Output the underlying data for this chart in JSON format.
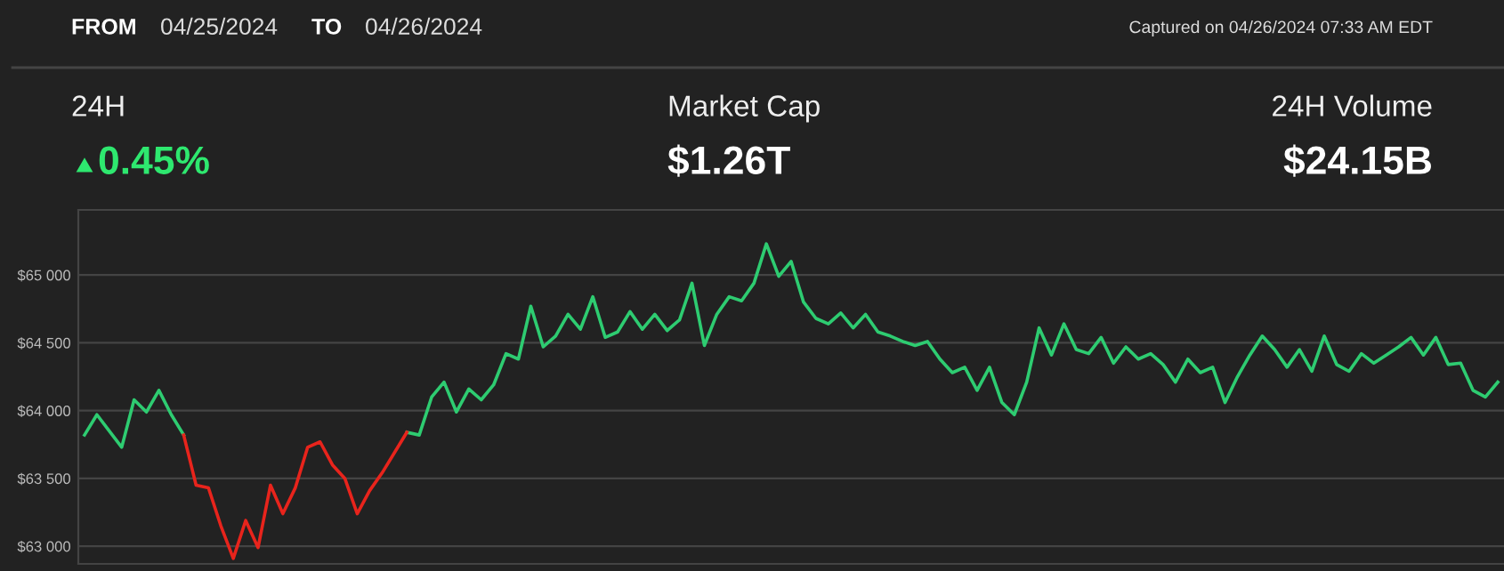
{
  "chart_data": {
    "type": "line",
    "annotations": [
      "FROM",
      "04/25/2024",
      "TO",
      "04/26/2024",
      "Captured on 04/26/2024 07:33 AM EDT",
      "24H",
      "0.45%",
      "Market Cap",
      "$1.26T",
      "24H Volume",
      "$24.15B"
    ],
    "categories": [
      null,
      null,
      null,
      null,
      null,
      null,
      null,
      null,
      null,
      null,
      null,
      null,
      null,
      null,
      null,
      null,
      null,
      null,
      null,
      null,
      null,
      null,
      null,
      null,
      null,
      null,
      null,
      null,
      null,
      null,
      null,
      null,
      null,
      null,
      null,
      null,
      null,
      null,
      null,
      null,
      null,
      null,
      null,
      null,
      null,
      null,
      null,
      null,
      null,
      null,
      null,
      null,
      null,
      null,
      null,
      null,
      null,
      null,
      null,
      null,
      null,
      null,
      null,
      null,
      null,
      null,
      null,
      null,
      null,
      null,
      null,
      null,
      null,
      null,
      null,
      null,
      null,
      null,
      null,
      null,
      null,
      null,
      null,
      null,
      null,
      null,
      null,
      null,
      null,
      null,
      null,
      null,
      null,
      null,
      null,
      null,
      null,
      null,
      null,
      null,
      null,
      null,
      null,
      null,
      null,
      null,
      null,
      null,
      null,
      null,
      null,
      null,
      null,
      null,
      null
    ],
    "series": [
      {
        "color": "#2ecc71",
        "values": [
          63820,
          63970,
          63850,
          63730,
          64080,
          63990,
          64150,
          63970,
          63820,
          null,
          null,
          null,
          null,
          null,
          null,
          null,
          null,
          null,
          null,
          null,
          null,
          null,
          null,
          null,
          null,
          null,
          null,
          null,
          null,
          null,
          null,
          null,
          null,
          null,
          null,
          null,
          null,
          null,
          null,
          null,
          null,
          null,
          null,
          null,
          null,
          null,
          null,
          null,
          null,
          null,
          null,
          null,
          null,
          null,
          null,
          null,
          null,
          null,
          null,
          null,
          null,
          null,
          null,
          null,
          null,
          null,
          null,
          null,
          null,
          null,
          null,
          null,
          null,
          null,
          null,
          null,
          null,
          null,
          null,
          null,
          null,
          null,
          null,
          null,
          null,
          null,
          null,
          null,
          null,
          null,
          null,
          null,
          null,
          null,
          null,
          null,
          null,
          null,
          null,
          null,
          null,
          null,
          null,
          null,
          null,
          null,
          null,
          null,
          null,
          null,
          null,
          null,
          null,
          null,
          null
        ]
      },
      {
        "color": "#2ecc71",
        "values": [
          null,
          null,
          null,
          null,
          null,
          null,
          null,
          null,
          null,
          null,
          null,
          null,
          null,
          null,
          null,
          null,
          null,
          null,
          null,
          null,
          null,
          null,
          null,
          null,
          null,
          null,
          63840,
          63820,
          64100,
          64210,
          63990,
          64160,
          64080,
          64190,
          64420,
          64380,
          64770,
          64470,
          64550,
          64710,
          64600,
          64840,
          64540,
          64580,
          64730,
          64600,
          64710,
          64590,
          64670,
          64940,
          64480,
          64710,
          64840,
          64810,
          64940,
          65230,
          64990,
          65100,
          64800,
          64680,
          64640,
          64720,
          64610,
          64710,
          64580,
          64550,
          64510,
          64480,
          64510,
          64380,
          64280,
          64320,
          64150,
          64320,
          64060,
          63970,
          64210,
          64610,
          64410,
          64640,
          64450,
          64420,
          64540,
          64350,
          64470,
          64380,
          64420,
          64340,
          64210,
          64380,
          64280,
          64320,
          64060,
          64250,
          64410,
          64550,
          64450,
          64320,
          64450,
          64290,
          64550,
          64340,
          64290,
          64420,
          64350,
          64410,
          64470,
          64540,
          64410,
          64540,
          64340,
          64350,
          64150,
          64100,
          64210
        ]
      },
      {
        "color": "#e8241c",
        "values": [
          null,
          null,
          null,
          null,
          null,
          null,
          null,
          null,
          63820,
          63450,
          63430,
          63150,
          62910,
          63190,
          62990,
          63450,
          63240,
          63430,
          63730,
          63770,
          63600,
          63500,
          63240,
          63410,
          63540,
          63690,
          63840,
          null,
          null,
          null,
          null,
          null,
          null,
          null,
          null,
          null,
          null,
          null,
          null,
          null,
          null,
          null,
          null,
          null,
          null,
          null,
          null,
          null,
          null,
          null,
          null,
          null,
          null,
          null,
          null,
          null,
          null,
          null,
          null,
          null,
          null,
          null,
          null,
          null,
          null,
          null,
          null,
          null,
          null,
          null,
          null,
          null,
          null,
          null,
          null,
          null,
          null,
          null,
          null,
          null,
          null,
          null,
          null,
          null,
          null,
          null,
          null,
          null,
          null,
          null,
          null,
          null,
          null,
          null,
          null,
          null,
          null,
          null,
          null,
          null,
          null,
          null,
          null,
          null,
          null,
          null,
          null,
          null,
          null,
          null,
          null,
          null,
          null,
          null,
          null
        ]
      }
    ],
    "ylim": [
      62870,
      65480
    ],
    "yticks": [
      {
        "value": 63000,
        "label": "$63 000"
      },
      {
        "value": 63500,
        "label": "$63 500"
      },
      {
        "value": 64000,
        "label": "$64 000"
      },
      {
        "value": 64500,
        "label": "$64 500"
      },
      {
        "value": 65000,
        "label": "$65 000"
      }
    ],
    "grid": "y",
    "tick_labels": "y",
    "marker": "none",
    "line_style": "solid",
    "legend": false
  }
}
